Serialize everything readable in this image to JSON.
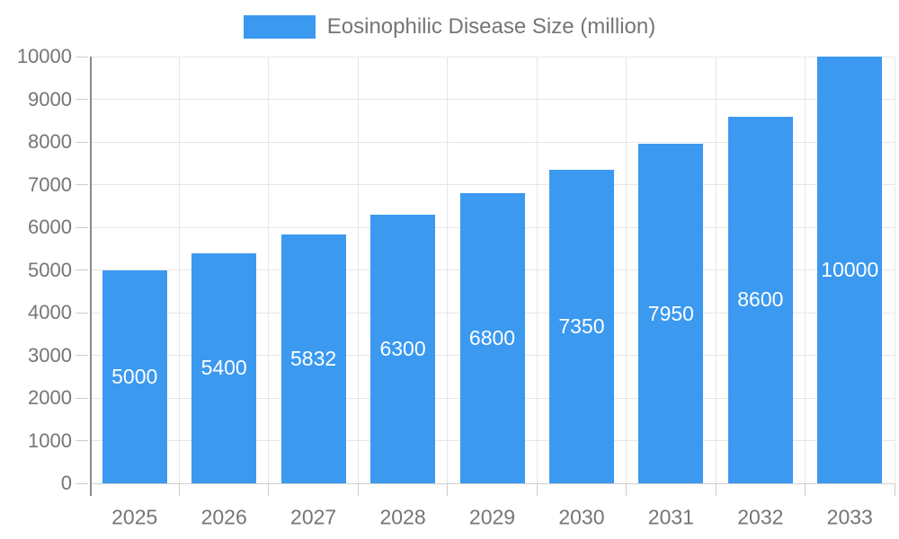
{
  "legend": {
    "label": "Eosinophilic Disease Size (million)"
  },
  "colors": {
    "bar": "#3B99F0",
    "grid": "#E6E6E6",
    "baseline": "#CFCFCF",
    "axis_line": "#8A8A8A",
    "tick": "#CCCCCC",
    "axis_text": "#757575",
    "bar_label_text": "#FFFFFF"
  },
  "chart_data": {
    "type": "bar",
    "title": "",
    "categories": [
      "2025",
      "2026",
      "2027",
      "2028",
      "2029",
      "2030",
      "2031",
      "2032",
      "2033"
    ],
    "series": [
      {
        "name": "Eosinophilic Disease Size (million)",
        "values": [
          5000,
          5400,
          5832,
          6300,
          6800,
          7350,
          7950,
          8600,
          10000
        ]
      }
    ],
    "xlabel": "",
    "ylabel": "",
    "ylim": [
      0,
      10000
    ],
    "ytick_step": 1000,
    "grid": true,
    "legend_position": "top",
    "bar_value_labels": "inside-center"
  }
}
